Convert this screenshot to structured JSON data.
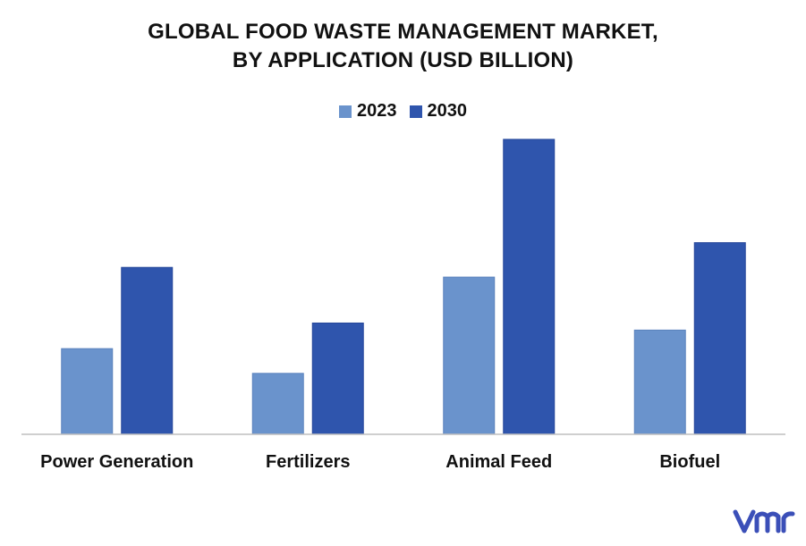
{
  "chart_data": {
    "type": "bar",
    "title_lines": [
      "GLOBAL FOOD WASTE MANAGEMENT MARKET,",
      "BY APPLICATION (USD BILLION)"
    ],
    "categories": [
      "Power Generation",
      "Fertilizers",
      "Animal Feed",
      "Biofuel"
    ],
    "series": [
      {
        "name": "2023",
        "values": [
          97,
          69,
          178,
          118
        ],
        "color": "#6a93cc"
      },
      {
        "name": "2030",
        "values": [
          189,
          126,
          334,
          217
        ],
        "color": "#2f55ad"
      }
    ],
    "ylim": [
      0,
      340
    ],
    "grid": false,
    "legend": "top-center"
  },
  "brand": {
    "logo_icon": "vmr-logo-icon",
    "logo_color": "#3b4fb8"
  }
}
